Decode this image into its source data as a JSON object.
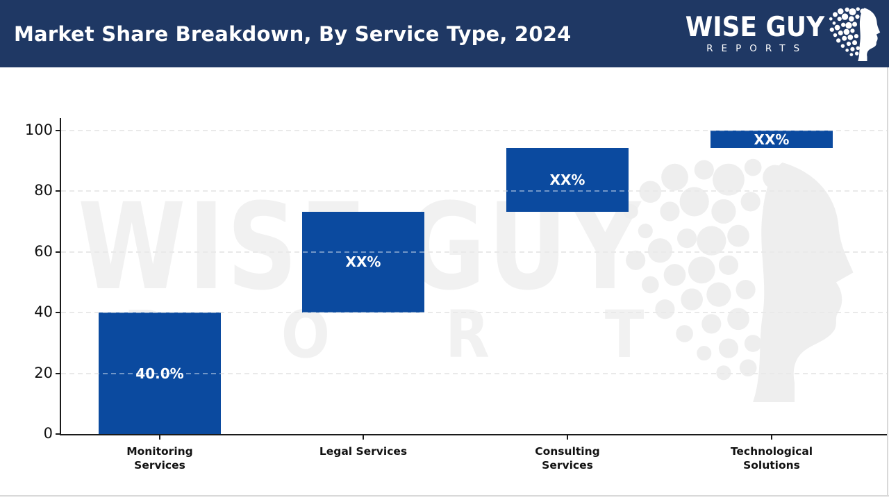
{
  "header": {
    "title": "Market Share Breakdown, By Service Type, 2024",
    "logo": {
      "wordmark": "WISE GUY",
      "subtext": "REPORTS"
    }
  },
  "watermark": {
    "line1": "WISE GUY",
    "line2": "P O R T S"
  },
  "colors": {
    "header_bg": "#1f3864",
    "bar": "#0b4a9f",
    "grid": "#d9d9d9",
    "axis": "#1a1a1a",
    "bar_label": "#ffffff",
    "watermark": "#f1f1f1"
  },
  "chart_data": {
    "type": "bar",
    "subtype": "waterfall",
    "title": "Market Share Breakdown, By Service Type, 2024",
    "xlabel": "",
    "ylabel": "",
    "ylim": [
      0,
      104
    ],
    "y_ticks": [
      0,
      20,
      40,
      60,
      80,
      100
    ],
    "grid": "horizontal-dashed",
    "legend": "none",
    "categories": [
      "Monitoring Services",
      "Legal Services",
      "Consulting Services",
      "Technological Solutions"
    ],
    "category_lines": [
      [
        "Monitoring",
        "Services"
      ],
      [
        "Legal Services"
      ],
      [
        "Consulting",
        "Services"
      ],
      [
        "Technological",
        "Solutions"
      ]
    ],
    "segments": [
      {
        "category": "Monitoring Services",
        "start": 0,
        "end": 40.0,
        "value": 40.0,
        "label": "40.0%"
      },
      {
        "category": "Legal Services",
        "start": 40.0,
        "end": 73.3,
        "value": 33.3,
        "label": "XX%"
      },
      {
        "category": "Consulting Services",
        "start": 73.3,
        "end": 94.2,
        "value": 20.9,
        "label": "XX%"
      },
      {
        "category": "Technological Solutions",
        "start": 94.2,
        "end": 100.0,
        "value": 5.8,
        "label": "XX%"
      }
    ]
  }
}
